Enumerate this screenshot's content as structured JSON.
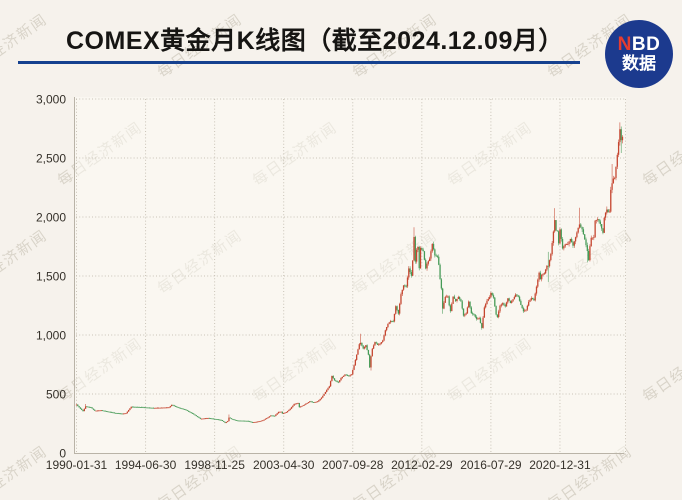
{
  "header": {
    "title": "COMEX黄金月K线图（截至2024.12.09月）"
  },
  "logo": {
    "line1_accent": "N",
    "line1_rest": "BD",
    "line2": "数据",
    "bg_color": "#1c3a8e",
    "accent_color": "#e63c2f"
  },
  "watermark": {
    "text": "每日经济新闻"
  },
  "chart_data": {
    "type": "candlestick",
    "title": "COMEX黄金月K线图（截至2024.12.09月）",
    "start_month": "1990-01",
    "end_month": "2024-12",
    "n_months": 420,
    "ylim": [
      0,
      3000
    ],
    "grid": "dotted",
    "up_color": "#c5452f",
    "down_color": "#459a56",
    "y_ticks": [
      {
        "value": 3000,
        "label": "3,000"
      },
      {
        "value": 2500,
        "label": "2,500"
      },
      {
        "value": 2000,
        "label": "2,000"
      },
      {
        "value": 1500,
        "label": "1,500"
      },
      {
        "value": 1000,
        "label": "1,000"
      },
      {
        "value": 500,
        "label": "500"
      },
      {
        "value": 0,
        "label": "0"
      }
    ],
    "x_ticks": [
      {
        "month_index": 0,
        "label": "1990-01-31"
      },
      {
        "month_index": 53,
        "label": "1994-06-30"
      },
      {
        "month_index": 106,
        "label": "1998-11-25"
      },
      {
        "month_index": 159,
        "label": "2003-04-30"
      },
      {
        "month_index": 212,
        "label": "2007-09-28"
      },
      {
        "month_index": 265,
        "label": "2012-02-29"
      },
      {
        "month_index": 318,
        "label": "2016-07-29"
      },
      {
        "month_index": 371,
        "label": "2020-12-31"
      }
    ],
    "monthly_close_anchors": [
      [
        0,
        410
      ],
      [
        3,
        375
      ],
      [
        5,
        355
      ],
      [
        7,
        395
      ],
      [
        11,
        386
      ],
      [
        14,
        358
      ],
      [
        19,
        362
      ],
      [
        23,
        353
      ],
      [
        29,
        340
      ],
      [
        35,
        333
      ],
      [
        38,
        337
      ],
      [
        42,
        392
      ],
      [
        47,
        390
      ],
      [
        53,
        386
      ],
      [
        59,
        382
      ],
      [
        65,
        384
      ],
      [
        71,
        387
      ],
      [
        73,
        408
      ],
      [
        78,
        385
      ],
      [
        83,
        369
      ],
      [
        89,
        334
      ],
      [
        95,
        290
      ],
      [
        101,
        296
      ],
      [
        107,
        287
      ],
      [
        111,
        279
      ],
      [
        114,
        256
      ],
      [
        116,
        270
      ],
      [
        117,
        300
      ],
      [
        119,
        288
      ],
      [
        123,
        275
      ],
      [
        127,
        274
      ],
      [
        131,
        272
      ],
      [
        135,
        260
      ],
      [
        139,
        266
      ],
      [
        143,
        277
      ],
      [
        147,
        302
      ],
      [
        149,
        318
      ],
      [
        152,
        314
      ],
      [
        155,
        348
      ],
      [
        157,
        350
      ],
      [
        158,
        334
      ],
      [
        161,
        346
      ],
      [
        164,
        375
      ],
      [
        167,
        415
      ],
      [
        170,
        423
      ],
      [
        171,
        388
      ],
      [
        175,
        410
      ],
      [
        179,
        438
      ],
      [
        182,
        429
      ],
      [
        185,
        437
      ],
      [
        188,
        469
      ],
      [
        191,
        517
      ],
      [
        194,
        565
      ],
      [
        196,
        653
      ],
      [
        198,
        614
      ],
      [
        201,
        599
      ],
      [
        203,
        636
      ],
      [
        206,
        664
      ],
      [
        209,
        651
      ],
      [
        211,
        666
      ],
      [
        213,
        743
      ],
      [
        215,
        834
      ],
      [
        217,
        922
      ],
      [
        218,
        934
      ],
      [
        220,
        885
      ],
      [
        222,
        913
      ],
      [
        224,
        833
      ],
      [
        225,
        725
      ],
      [
        226,
        819
      ],
      [
        227,
        884
      ],
      [
        229,
        939
      ],
      [
        231,
        916
      ],
      [
        233,
        927
      ],
      [
        235,
        953
      ],
      [
        237,
        1040
      ],
      [
        239,
        1096
      ],
      [
        241,
        1118
      ],
      [
        243,
        1115
      ],
      [
        245,
        1244
      ],
      [
        247,
        1181
      ],
      [
        249,
        1346
      ],
      [
        251,
        1421
      ],
      [
        253,
        1411
      ],
      [
        255,
        1564
      ],
      [
        257,
        1502
      ],
      [
        258,
        1631
      ],
      [
        259,
        1831
      ],
      [
        260,
        1622
      ],
      [
        261,
        1722
      ],
      [
        262,
        1746
      ],
      [
        263,
        1566
      ],
      [
        264,
        1738
      ],
      [
        266,
        1710
      ],
      [
        268,
        1564
      ],
      [
        269,
        1604
      ],
      [
        271,
        1648
      ],
      [
        273,
        1772
      ],
      [
        274,
        1726
      ],
      [
        275,
        1675
      ],
      [
        277,
        1663
      ],
      [
        278,
        1595
      ],
      [
        279,
        1472
      ],
      [
        280,
        1394
      ],
      [
        281,
        1224
      ],
      [
        283,
        1323
      ],
      [
        285,
        1327
      ],
      [
        286,
        1251
      ],
      [
        287,
        1202
      ],
      [
        289,
        1326
      ],
      [
        291,
        1288
      ],
      [
        293,
        1322
      ],
      [
        295,
        1285
      ],
      [
        297,
        1164
      ],
      [
        299,
        1184
      ],
      [
        301,
        1283
      ],
      [
        303,
        1184
      ],
      [
        305,
        1172
      ],
      [
        307,
        1135
      ],
      [
        309,
        1142
      ],
      [
        311,
        1060
      ],
      [
        313,
        1234
      ],
      [
        315,
        1290
      ],
      [
        317,
        1321
      ],
      [
        318,
        1357
      ],
      [
        320,
        1317
      ],
      [
        322,
        1173
      ],
      [
        323,
        1152
      ],
      [
        325,
        1248
      ],
      [
        327,
        1269
      ],
      [
        329,
        1242
      ],
      [
        331,
        1311
      ],
      [
        333,
        1271
      ],
      [
        335,
        1303
      ],
      [
        337,
        1343
      ],
      [
        339,
        1325
      ],
      [
        341,
        1254
      ],
      [
        343,
        1201
      ],
      [
        345,
        1215
      ],
      [
        347,
        1281
      ],
      [
        349,
        1313
      ],
      [
        351,
        1293
      ],
      [
        353,
        1410
      ],
      [
        355,
        1528
      ],
      [
        356,
        1472
      ],
      [
        357,
        1511
      ],
      [
        359,
        1523
      ],
      [
        361,
        1586
      ],
      [
        362,
        1583
      ],
      [
        364,
        1686
      ],
      [
        365,
        1780
      ],
      [
        367,
        1974
      ],
      [
        368,
        1886
      ],
      [
        369,
        1879
      ],
      [
        370,
        1777
      ],
      [
        371,
        1895
      ],
      [
        373,
        1734
      ],
      [
        375,
        1768
      ],
      [
        377,
        1771
      ],
      [
        379,
        1814
      ],
      [
        381,
        1757
      ],
      [
        383,
        1829
      ],
      [
        385,
        1909
      ],
      [
        386,
        1937
      ],
      [
        388,
        1896
      ],
      [
        390,
        1811
      ],
      [
        392,
        1712
      ],
      [
        393,
        1634
      ],
      [
        394,
        1753
      ],
      [
        395,
        1824
      ],
      [
        397,
        1828
      ],
      [
        398,
        1969
      ],
      [
        400,
        1982
      ],
      [
        402,
        1940
      ],
      [
        404,
        1866
      ],
      [
        405,
        1994
      ],
      [
        406,
        2036
      ],
      [
        407,
        2063
      ],
      [
        408,
        2040
      ],
      [
        409,
        2045
      ],
      [
        410,
        2230
      ],
      [
        411,
        2286
      ],
      [
        412,
        2326
      ],
      [
        413,
        2331
      ],
      [
        414,
        2426
      ],
      [
        415,
        2527
      ],
      [
        416,
        2635
      ],
      [
        417,
        2744
      ],
      [
        418,
        2651
      ],
      [
        419,
        2680
      ]
    ],
    "wick_high_overrides": [
      [
        7,
        415
      ],
      [
        117,
        326
      ],
      [
        218,
        1011
      ],
      [
        259,
        1913
      ],
      [
        362,
        1704
      ],
      [
        367,
        2075
      ],
      [
        386,
        2078
      ],
      [
        411,
        2449
      ],
      [
        417,
        2802
      ]
    ],
    "wick_low_overrides": [
      [
        114,
        252
      ],
      [
        135,
        255
      ],
      [
        226,
        699
      ],
      [
        281,
        1180
      ],
      [
        311,
        1045
      ],
      [
        362,
        1450
      ],
      [
        392,
        1615
      ],
      [
        418,
        2542
      ]
    ]
  }
}
